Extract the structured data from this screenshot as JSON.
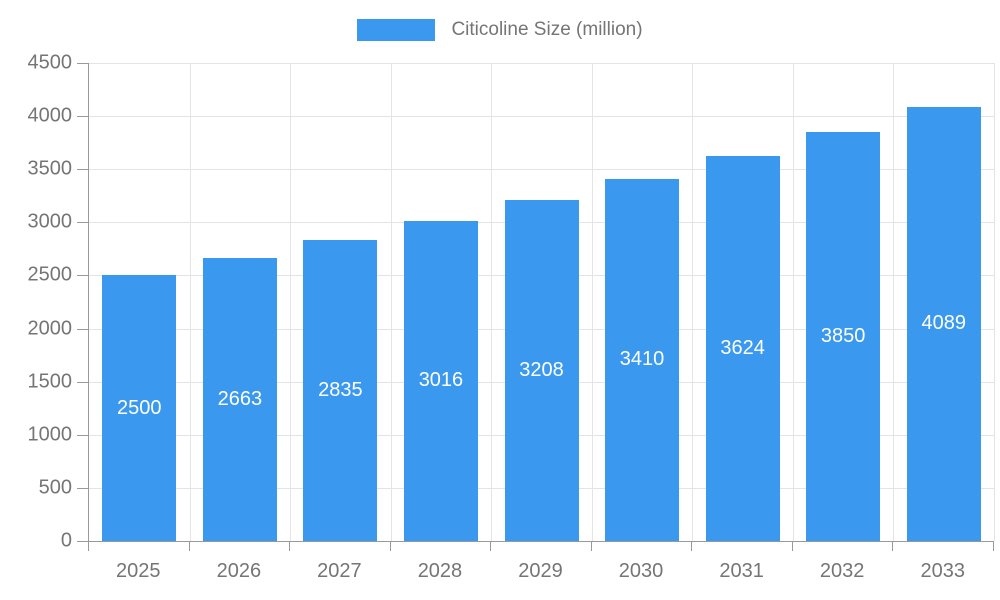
{
  "chart_data": {
    "type": "bar",
    "title": "Citicoline Size (million)",
    "series_name": "Citicoline Size (million)",
    "categories": [
      "2025",
      "2026",
      "2027",
      "2028",
      "2029",
      "2030",
      "2031",
      "2032",
      "2033"
    ],
    "values": [
      2500,
      2663,
      2835,
      3016,
      3208,
      3410,
      3624,
      3850,
      4089
    ],
    "xlabel": "",
    "ylabel": "",
    "ylim": [
      0,
      4500
    ],
    "ytick_labels": [
      0,
      500,
      1000,
      1500,
      2000,
      2500,
      3000,
      3500,
      4000,
      4500
    ],
    "grid": true,
    "legend_position": "top",
    "bar_color": "#3a99ee",
    "bar_label_color": "#ffffff",
    "axis_text_color": "#757575",
    "gridline_color": "#e4e4e4",
    "axis_line_color": "#999999"
  },
  "legend": {
    "label": "Citicoline Size (million)"
  }
}
